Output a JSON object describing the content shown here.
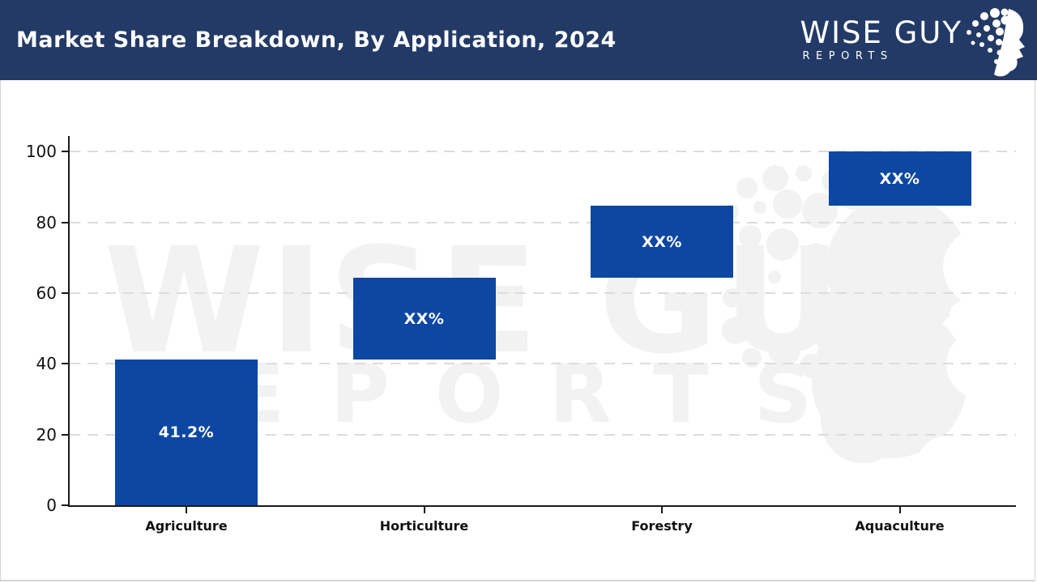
{
  "header": {
    "title": "Market Share Breakdown, By Application, 2024",
    "bg_color": "#233a67",
    "logo": {
      "line1": "WISE GUY",
      "line2": "REPORTS"
    }
  },
  "watermark": {
    "line1": "WISE GUY",
    "line2": "REPORTS"
  },
  "chart_data": {
    "type": "bar",
    "subtype": "waterfall",
    "title": "Market Share Breakdown, By Application, 2024",
    "categories": [
      "Agriculture",
      "Horticulture",
      "Forestry",
      "Aquaculture"
    ],
    "segments": [
      {
        "category": "Agriculture",
        "start": 0,
        "end": 41.2,
        "label": "41.2%"
      },
      {
        "category": "Horticulture",
        "start": 41.2,
        "end": 64.3,
        "label": "XX%"
      },
      {
        "category": "Forestry",
        "start": 64.3,
        "end": 84.7,
        "label": "XX%"
      },
      {
        "category": "Aquaculture",
        "start": 84.7,
        "end": 100,
        "label": "XX%"
      }
    ],
    "xlabel": "",
    "ylabel": "",
    "ylim": [
      0,
      100
    ],
    "yticks": [
      0,
      20,
      40,
      60,
      80,
      100
    ],
    "grid": "dashed-horizontal",
    "legend": "none",
    "bar_color": "#0d47a1",
    "bar_label_color": "#ffffff",
    "axis_color": "#1a1a1a"
  }
}
